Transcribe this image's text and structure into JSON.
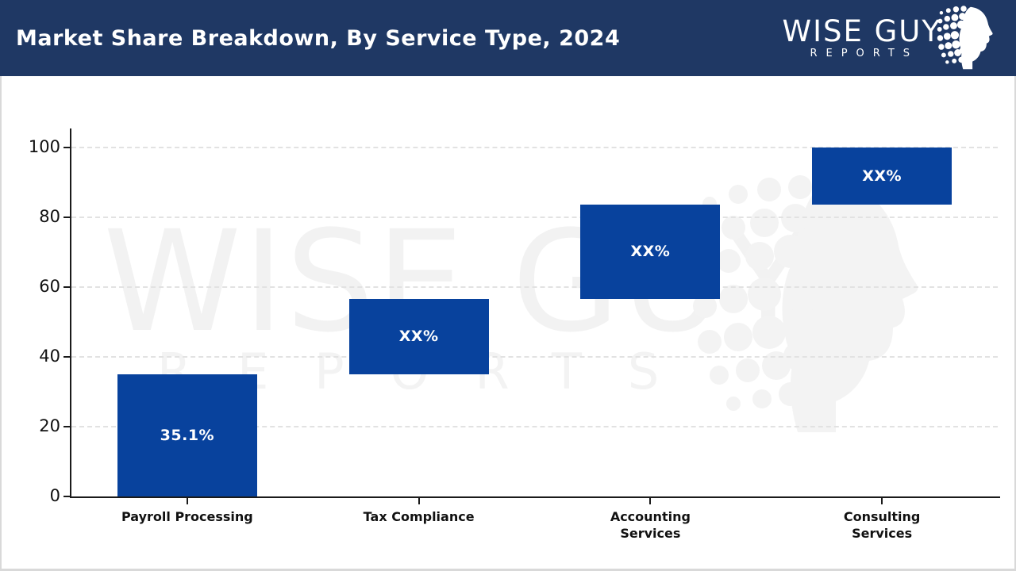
{
  "header": {
    "title": "Market Share Breakdown, By Service Type, 2024",
    "logo": {
      "line1": "WISE GUY",
      "line2": "REPORTS"
    }
  },
  "watermark": {
    "line1": "WISE GUY",
    "line2": "REPORTS"
  },
  "colors": {
    "header_bg": "#1f3864",
    "bar": "#08429d",
    "bar_label": "#ffffff",
    "axis": "#1a1a1a",
    "grid": "#e2e2e2",
    "watermark": "#f2f2f2",
    "frame_border": "#d9d9d9"
  },
  "chart_data": {
    "type": "bar",
    "subtype": "waterfall",
    "title": "Market Share Breakdown, By Service Type, 2024",
    "categories": [
      "Payroll Processing",
      "Tax Compliance",
      "Accounting\nServices",
      "Consulting\nServices"
    ],
    "segments": [
      {
        "category": "Payroll Processing",
        "start": 0,
        "end": 35.1,
        "label": "35.1%"
      },
      {
        "category": "Tax Compliance",
        "start": 35.1,
        "end": 56.7,
        "label": "XX%"
      },
      {
        "category": "Accounting\nServices",
        "start": 56.7,
        "end": 83.7,
        "label": "XX%"
      },
      {
        "category": "Consulting\nServices",
        "start": 83.7,
        "end": 100,
        "label": "XX%"
      }
    ],
    "xlabel": "",
    "ylabel": "",
    "ylim": [
      0,
      100
    ],
    "yticks": [
      0,
      20,
      40,
      60,
      80,
      100
    ],
    "grid": "horizontal-dashed",
    "legend": "none"
  }
}
